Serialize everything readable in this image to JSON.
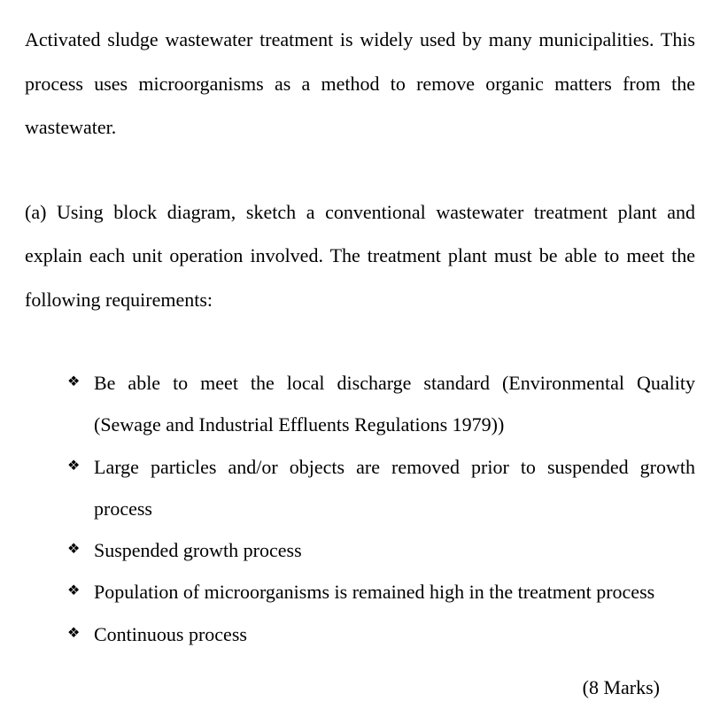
{
  "intro_paragraph": "Activated sludge wastewater treatment is widely used by many municipalities. This process uses microorganisms as a method to remove organic matters from the wastewater.",
  "section_a": "(a) Using block diagram, sketch a conventional wastewater treatment plant and explain each unit operation involved. The treatment plant must be able to meet the following requirements:",
  "bullets": {
    "item1": "Be able to meet the local discharge standard (Environmental Quality (Sewage and Industrial Effluents Regulations 1979))",
    "item2": "Large particles and/or objects are removed prior to suspended growth process",
    "item3": "Suspended growth process",
    "item4": "Population of microorganisms is remained high in the treatment process",
    "item5": "Continuous process"
  },
  "marks": "(8 Marks)",
  "typography": {
    "font_family": "Times New Roman",
    "font_size_pt": 16,
    "line_spacing": 2.25
  },
  "colors": {
    "text": "#000000",
    "background": "#ffffff"
  }
}
